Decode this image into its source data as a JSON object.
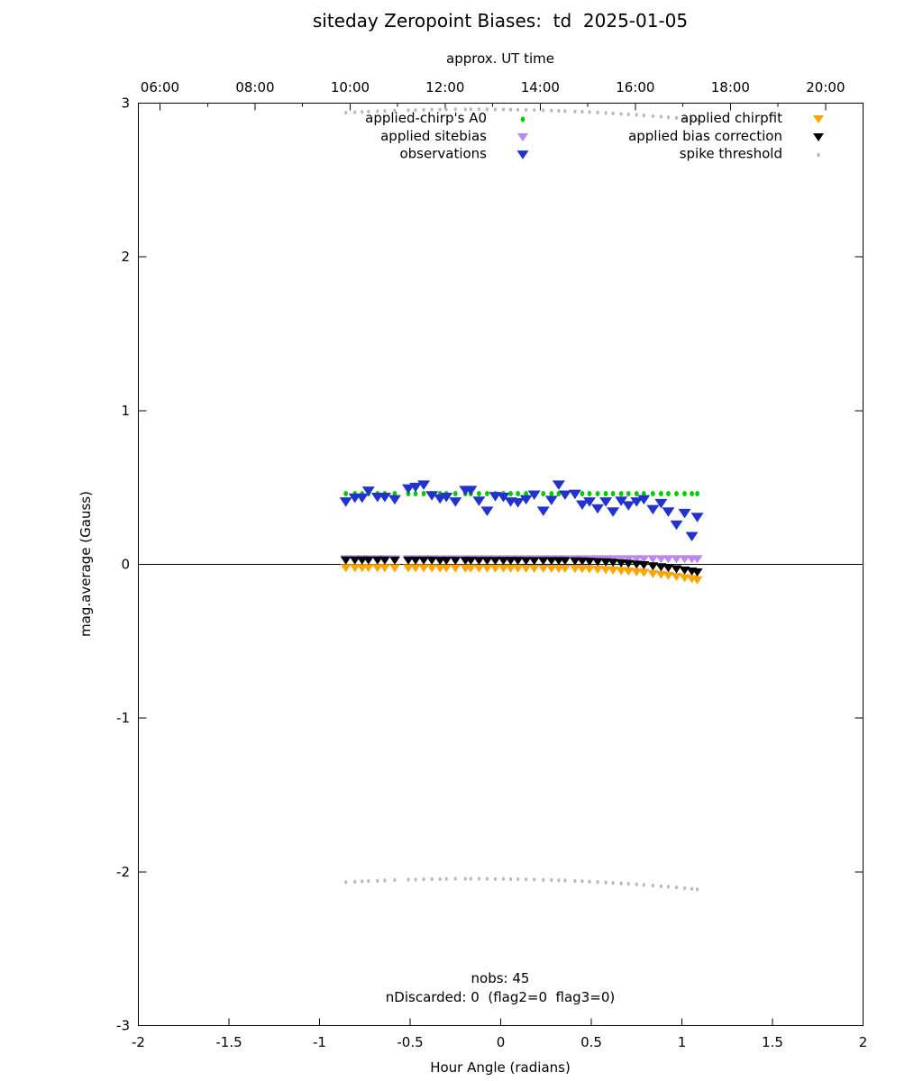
{
  "title": "siteday Zeropoint Biases:  td  2025-01-05",
  "annotations": {
    "nobs": "nobs: 45",
    "ndiscarded": "nDiscarded: 0  (flag2=0  flag3=0)"
  },
  "axes": {
    "top": {
      "label": "approx. UT time",
      "ticks": [
        {
          "label": "06:00",
          "x": -1.881
        },
        {
          "label": "08:00",
          "x": -1.356
        },
        {
          "label": "10:00",
          "x": -0.831
        },
        {
          "label": "12:00",
          "x": -0.307
        },
        {
          "label": "14:00",
          "x": 0.218
        },
        {
          "label": "16:00",
          "x": 0.743
        },
        {
          "label": "18:00",
          "x": 1.268
        },
        {
          "label": "20:00",
          "x": 1.793
        }
      ],
      "minor_ticks_x": [
        -1.618,
        -1.094,
        -0.569,
        -0.044,
        0.48,
        1.005,
        1.53
      ]
    },
    "bottom": {
      "label": "Hour Angle (radians)",
      "ticks": [
        {
          "label": "-2",
          "x": -2
        },
        {
          "label": "-1.5",
          "x": -1.5
        },
        {
          "label": "-1",
          "x": -1
        },
        {
          "label": "-0.5",
          "x": -0.5
        },
        {
          "label": "0",
          "x": 0
        },
        {
          "label": "0.5",
          "x": 0.5
        },
        {
          "label": "1",
          "x": 1
        },
        {
          "label": "1.5",
          "x": 1.5
        },
        {
          "label": "2",
          "x": 2
        }
      ]
    },
    "left": {
      "label": "mag.average (Gauss)",
      "ticks": [
        {
          "label": "3",
          "y": 3
        },
        {
          "label": "2",
          "y": 2
        },
        {
          "label": "1",
          "y": 1
        },
        {
          "label": "0",
          "y": 0
        },
        {
          "label": "-1",
          "y": -1
        },
        {
          "label": "-2",
          "y": -2
        },
        {
          "label": "-3",
          "y": -3
        }
      ]
    }
  },
  "legend": {
    "columns": [
      {
        "items": [
          {
            "label": "applied-chirp's A0",
            "marker": "dot",
            "color": "#00cc00",
            "msize": 5
          },
          {
            "label": "applied sitebias",
            "marker": "triangle-down",
            "color": "#bb88ee",
            "msize": 12
          },
          {
            "label": "observations",
            "marker": "triangle-down",
            "color": "#2233cc",
            "msize": 13
          }
        ]
      },
      {
        "items": [
          {
            "label": "applied chirpfit",
            "marker": "triangle-down",
            "color": "#ffa500",
            "msize": 12
          },
          {
            "label": "applied bias correction",
            "marker": "triangle-down",
            "color": "#000000",
            "msize": 12
          },
          {
            "label": "spike threshold",
            "marker": "smalldot",
            "color": "#b9b9b9",
            "msize": 3.4
          }
        ]
      }
    ]
  },
  "chart_data": {
    "type": "scatter",
    "title": "siteday Zeropoint Biases:  td  2025-01-05",
    "xlabel": "Hour Angle (radians)",
    "x2label": "approx. UT time",
    "ylabel": "mag.average (Gauss)",
    "xlim": [
      -2,
      2
    ],
    "ylim": [
      -3,
      3
    ],
    "grid": false,
    "legend_position": "top-inside-two-columns",
    "zero_line": 0,
    "x": [
      -0.855,
      -0.805,
      -0.765,
      -0.73,
      -0.68,
      -0.64,
      -0.585,
      -0.51,
      -0.47,
      -0.425,
      -0.38,
      -0.335,
      -0.3,
      -0.25,
      -0.195,
      -0.165,
      -0.12,
      -0.075,
      -0.03,
      0.015,
      0.055,
      0.095,
      0.14,
      0.185,
      0.235,
      0.28,
      0.32,
      0.355,
      0.41,
      0.45,
      0.49,
      0.535,
      0.58,
      0.62,
      0.665,
      0.705,
      0.75,
      0.79,
      0.84,
      0.885,
      0.925,
      0.97,
      1.015,
      1.055,
      1.085
    ],
    "series": [
      {
        "name": "spike threshold (upper)",
        "marker": "smalldot",
        "color": "#b9b9b9",
        "msize": 3.2,
        "values": [
          2.938,
          2.941,
          2.943,
          2.945,
          2.947,
          2.949,
          2.951,
          2.954,
          2.955,
          2.957,
          2.958,
          2.958,
          2.959,
          2.96,
          2.96,
          2.96,
          2.96,
          2.96,
          2.959,
          2.959,
          2.958,
          2.957,
          2.956,
          2.955,
          2.953,
          2.952,
          2.95,
          2.949,
          2.946,
          2.944,
          2.942,
          2.939,
          2.936,
          2.933,
          2.93,
          2.927,
          2.924,
          2.92,
          2.916,
          2.912,
          2.908,
          2.904,
          2.899,
          2.895,
          2.891
        ]
      },
      {
        "name": "spike threshold (lower)",
        "marker": "smalldot",
        "color": "#b9b9b9",
        "msize": 3.2,
        "values": [
          -2.067,
          -2.064,
          -2.062,
          -2.06,
          -2.058,
          -2.056,
          -2.054,
          -2.051,
          -2.05,
          -2.048,
          -2.047,
          -2.047,
          -2.046,
          -2.045,
          -2.045,
          -2.045,
          -2.045,
          -2.045,
          -2.046,
          -2.046,
          -2.047,
          -2.048,
          -2.049,
          -2.05,
          -2.052,
          -2.053,
          -2.055,
          -2.056,
          -2.059,
          -2.061,
          -2.063,
          -2.066,
          -2.069,
          -2.072,
          -2.075,
          -2.078,
          -2.081,
          -2.085,
          -2.089,
          -2.093,
          -2.097,
          -2.101,
          -2.106,
          -2.11,
          -2.114
        ]
      },
      {
        "name": "applied-chirp's A0",
        "marker": "dot",
        "color": "#00cc00",
        "msize": 5,
        "values": [
          0.46,
          0.46,
          0.46,
          0.46,
          0.46,
          0.46,
          0.46,
          0.46,
          0.46,
          0.46,
          0.46,
          0.46,
          0.46,
          0.46,
          0.46,
          0.46,
          0.46,
          0.46,
          0.46,
          0.46,
          0.46,
          0.46,
          0.46,
          0.46,
          0.46,
          0.46,
          0.46,
          0.46,
          0.46,
          0.46,
          0.46,
          0.46,
          0.46,
          0.46,
          0.46,
          0.46,
          0.46,
          0.46,
          0.46,
          0.46,
          0.46,
          0.46,
          0.46,
          0.46,
          0.46
        ]
      },
      {
        "name": "applied chirpfit",
        "marker": "triangle-down",
        "color": "#ffa500",
        "msize": 12,
        "values": [
          -0.025,
          -0.025,
          -0.025,
          -0.025,
          -0.025,
          -0.025,
          -0.026,
          -0.026,
          -0.026,
          -0.026,
          -0.026,
          -0.027,
          -0.027,
          -0.027,
          -0.027,
          -0.027,
          -0.028,
          -0.028,
          -0.028,
          -0.028,
          -0.028,
          -0.028,
          -0.029,
          -0.029,
          -0.029,
          -0.029,
          -0.029,
          -0.029,
          -0.03,
          -0.031,
          -0.033,
          -0.035,
          -0.037,
          -0.04,
          -0.044,
          -0.047,
          -0.052,
          -0.056,
          -0.063,
          -0.069,
          -0.075,
          -0.082,
          -0.09,
          -0.097,
          -0.103
        ]
      },
      {
        "name": "applied sitebias",
        "marker": "triangle-down",
        "color": "#bb88ee",
        "msize": 12,
        "values": [
          0.033,
          0.033,
          0.033,
          0.033,
          0.033,
          0.033,
          0.033,
          0.033,
          0.033,
          0.033,
          0.033,
          0.033,
          0.033,
          0.033,
          0.033,
          0.033,
          0.033,
          0.033,
          0.033,
          0.033,
          0.033,
          0.033,
          0.033,
          0.033,
          0.033,
          0.033,
          0.033,
          0.033,
          0.033,
          0.033,
          0.033,
          0.033,
          0.033,
          0.033,
          0.033,
          0.033,
          0.033,
          0.033,
          0.033,
          0.033,
          0.033,
          0.033,
          0.033,
          0.033,
          0.033
        ]
      },
      {
        "name": "applied bias correction",
        "marker": "triangle-down",
        "color": "#000000",
        "msize": 12,
        "values": [
          0.025,
          0.025,
          0.025,
          0.025,
          0.025,
          0.025,
          0.024,
          0.024,
          0.024,
          0.024,
          0.024,
          0.023,
          0.023,
          0.023,
          0.023,
          0.023,
          0.022,
          0.022,
          0.022,
          0.022,
          0.022,
          0.022,
          0.021,
          0.021,
          0.021,
          0.021,
          0.021,
          0.021,
          0.02,
          0.019,
          0.017,
          0.015,
          0.013,
          0.01,
          0.006,
          0.003,
          -0.002,
          -0.006,
          -0.013,
          -0.019,
          -0.025,
          -0.032,
          -0.04,
          -0.047,
          -0.053
        ]
      },
      {
        "name": "observations",
        "marker": "triangle-down",
        "color": "#2233cc",
        "msize": 14,
        "values": [
          0.405,
          0.43,
          0.43,
          0.475,
          0.435,
          0.435,
          0.42,
          0.49,
          0.5,
          0.515,
          0.445,
          0.425,
          0.435,
          0.405,
          0.48,
          0.48,
          0.41,
          0.345,
          0.44,
          0.435,
          0.405,
          0.4,
          0.42,
          0.45,
          0.345,
          0.415,
          0.515,
          0.45,
          0.455,
          0.385,
          0.405,
          0.36,
          0.405,
          0.34,
          0.41,
          0.38,
          0.405,
          0.42,
          0.355,
          0.395,
          0.34,
          0.255,
          0.33,
          0.18,
          0.305
        ]
      }
    ],
    "annotations": [
      "nobs: 45",
      "nDiscarded: 0  (flag2=0  flag3=0)"
    ]
  }
}
